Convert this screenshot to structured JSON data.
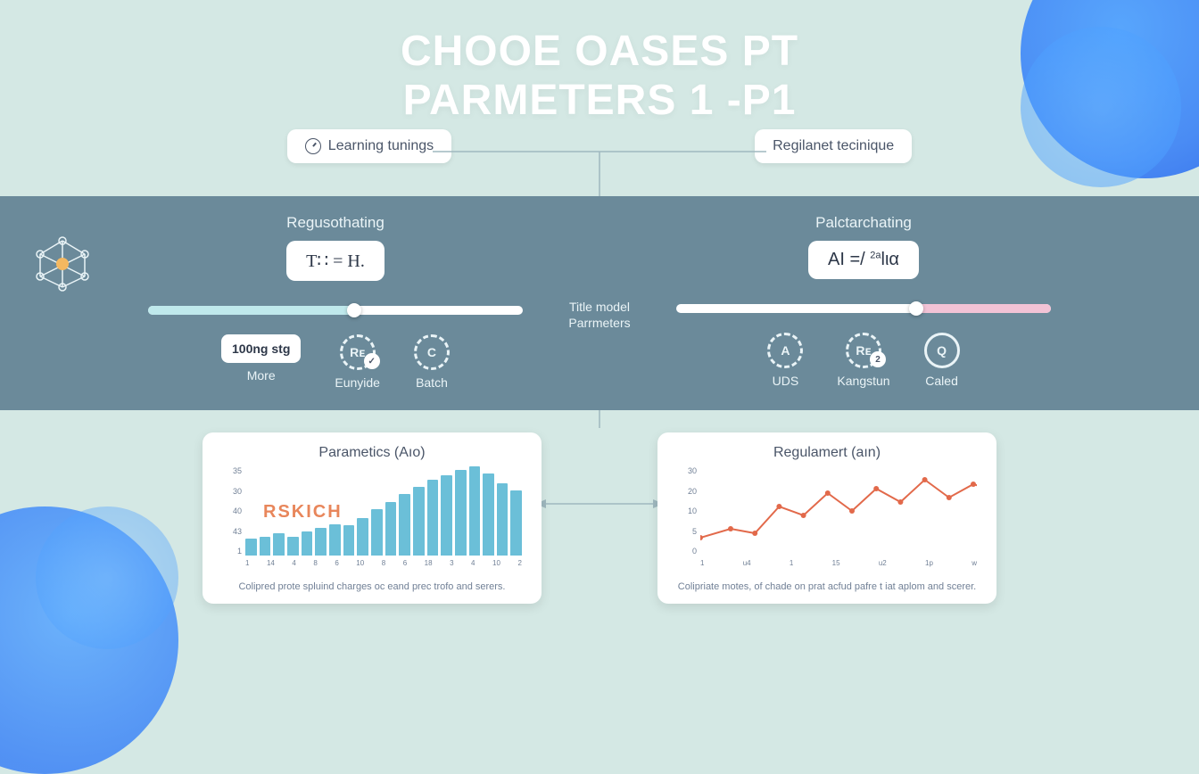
{
  "colors": {
    "page_bg": "#d4e8e4",
    "band_bg": "#6b8a9a",
    "accent_blue": "#3b82f6",
    "card_bg": "#ffffff",
    "text_muted": "#4a5568",
    "bar_color": "#6bbfd8",
    "line_color": "#e2694a",
    "watermark_color": "#e67a4a",
    "slider_left_fill": "#bfe9ec",
    "slider_right_fill": "#f2c3d6"
  },
  "title": "CHOOE OASES PT PARMETERS  1 -P1",
  "top_pills": {
    "left": "Learning tunings",
    "right": "Regilanet tecinique"
  },
  "band": {
    "center_label_line1": "Title model",
    "center_label_line2": "Parrmeters",
    "left": {
      "title": "Regusothating",
      "formula": "T∷ = H.",
      "slider": {
        "fill_pct": 55,
        "thumb_pct": 55,
        "fill_color": "#bfe9ec"
      },
      "items": [
        {
          "kind": "badge",
          "top": "100ng stg",
          "label": "More"
        },
        {
          "kind": "ring",
          "letter": "Rᴇ",
          "mini": "✓",
          "label": "Eunyide"
        },
        {
          "kind": "ring",
          "letter": "C",
          "label": "Batch"
        }
      ]
    },
    "right": {
      "title": "Palctarchating",
      "formula_main": "AI =/ ",
      "formula_sup": "2a",
      "formula_tail": "lια",
      "slider": {
        "fill_pct": 64,
        "thumb_pct": 64,
        "fill_color": "#f2c3d6",
        "fill_side": "right"
      },
      "items": [
        {
          "kind": "ring",
          "letter": "A",
          "label": "UDS"
        },
        {
          "kind": "ring",
          "letter": "Rᴇ",
          "mini": "2",
          "label": "Kangstun"
        },
        {
          "kind": "ring-solid",
          "letter": "Q",
          "label": "Caled"
        }
      ]
    }
  },
  "cards": {
    "left": {
      "title": "Parametics (Aıo)",
      "caption": "Colipred prote spluind charges oc eand prec trofo and serers.",
      "watermark": "RSKICH",
      "chart": {
        "type": "bar",
        "y_ticks": [
          "35",
          "30",
          "40",
          "43",
          "1"
        ],
        "x_ticks": [
          "1",
          "14",
          "4",
          "8",
          "6",
          "10",
          "8",
          "6",
          "18",
          "3",
          "4",
          "10",
          "2"
        ],
        "values": [
          18,
          20,
          24,
          20,
          26,
          30,
          34,
          33,
          40,
          50,
          58,
          66,
          74,
          82,
          86,
          92,
          96,
          88,
          78,
          70
        ]
      }
    },
    "right": {
      "title": "Regulamert (aın)",
      "caption": "Colipriate motes, of chade on prat acfud pafre t iat aplom and scerer.",
      "chart": {
        "type": "line",
        "y_ticks": [
          "30",
          "20",
          "10",
          "5",
          "0"
        ],
        "x_ticks": [
          "1",
          "u4",
          "1",
          "15",
          "u2",
          "1p",
          "w"
        ],
        "points": [
          {
            "x": 0,
            "y": 8
          },
          {
            "x": 10,
            "y": 12
          },
          {
            "x": 18,
            "y": 10
          },
          {
            "x": 26,
            "y": 22
          },
          {
            "x": 34,
            "y": 18
          },
          {
            "x": 42,
            "y": 28
          },
          {
            "x": 50,
            "y": 20
          },
          {
            "x": 58,
            "y": 30
          },
          {
            "x": 66,
            "y": 24
          },
          {
            "x": 74,
            "y": 34
          },
          {
            "x": 82,
            "y": 26
          },
          {
            "x": 90,
            "y": 32
          },
          {
            "x": 100,
            "y": 28
          }
        ],
        "y_max": 40
      }
    }
  }
}
